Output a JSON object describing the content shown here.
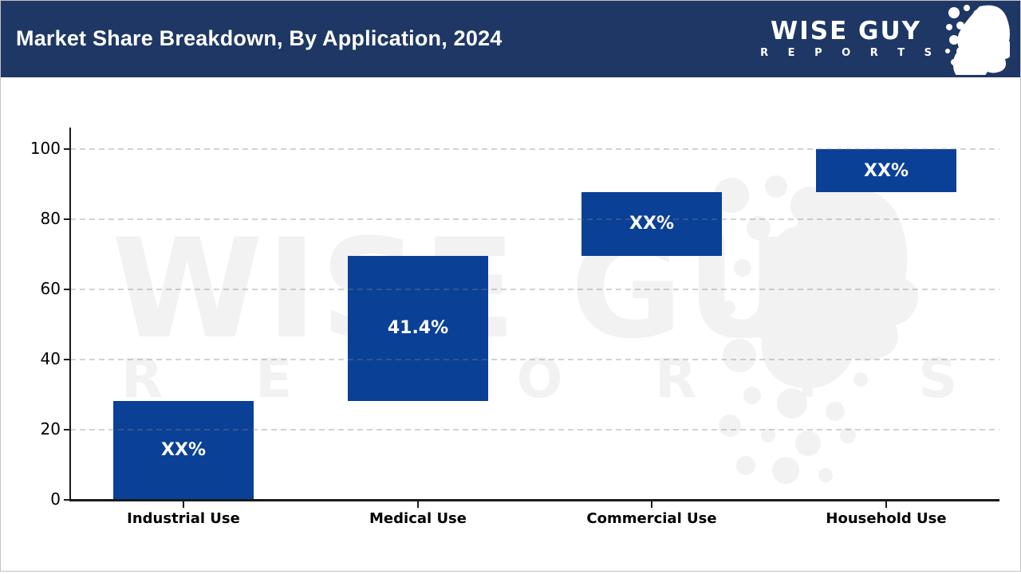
{
  "header": {
    "title": "Market Share Breakdown, By Application, 2024",
    "bg_color": "#1e3765",
    "logo": {
      "name": "Wise Guy Reports",
      "line1": "WISE GUY",
      "line2": "R E P O R T S"
    }
  },
  "watermark": {
    "line1": "WISE GUY",
    "line2": "R E P O R T S"
  },
  "chart_data": {
    "type": "bar",
    "subtype": "waterfall-floating-bars",
    "title": "Market Share Breakdown, By Application, 2024",
    "categories": [
      "Industrial Use",
      "Medical Use",
      "Commercial Use",
      "Household Use"
    ],
    "series": [
      {
        "name": "Market share (%)",
        "segments": [
          {
            "category": "Industrial Use",
            "start": 0,
            "end": 28.2,
            "label": "XX%"
          },
          {
            "category": "Medical Use",
            "start": 28.2,
            "end": 69.6,
            "label": "41.4%"
          },
          {
            "category": "Commercial Use",
            "start": 69.6,
            "end": 87.7,
            "label": "XX%"
          },
          {
            "category": "Household Use",
            "start": 87.7,
            "end": 100,
            "label": "XX%"
          }
        ]
      }
    ],
    "xlabel": "",
    "ylabel": "",
    "ylim": [
      0,
      100
    ],
    "yticks": [
      0,
      20,
      40,
      60,
      80,
      100
    ],
    "grid": "horizontal-dashed-over-bars",
    "legend_position": "none",
    "bar_color": "#0a4096",
    "bar_label_color": "#ffffff",
    "axis_color": "#1a1a1a",
    "grid_color": "rgba(128,128,128,0.35)"
  }
}
